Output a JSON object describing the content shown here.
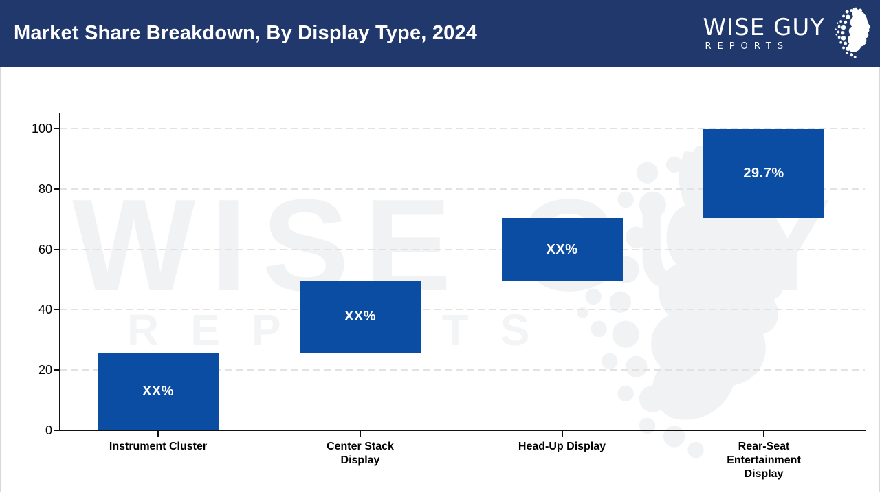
{
  "header": {
    "title": "Market Share Breakdown, By Display Type, 2024",
    "bg_color": "#20386b",
    "brand": {
      "line1": "WISE GUY",
      "line2": "REPORTS"
    }
  },
  "watermark": {
    "line1": "WISE GUY",
    "line2": "REPORTS"
  },
  "chart_data": {
    "type": "bar",
    "variant": "waterfall",
    "title": "Market Share Breakdown, By Display Type, 2024",
    "categories": [
      "Instrument Cluster",
      "Center Stack Display",
      "Head-Up Display",
      "Rear-Seat Entertainment Display"
    ],
    "segments": [
      {
        "category": "Instrument Cluster",
        "start": 0,
        "end": 25.7,
        "label": "XX%"
      },
      {
        "category": "Center Stack Display",
        "start": 25.7,
        "end": 49.5,
        "label": "XX%"
      },
      {
        "category": "Head-Up Display",
        "start": 49.5,
        "end": 70.3,
        "label": "XX%"
      },
      {
        "category": "Rear-Seat Entertainment Display",
        "start": 70.3,
        "end": 100,
        "label": "29.7%"
      }
    ],
    "y_ticks": [
      0,
      20,
      40,
      60,
      80,
      100
    ],
    "ylim": [
      0,
      100
    ],
    "xlabel": "",
    "ylabel": "",
    "legend": "none",
    "grid": "dashed-horizontal",
    "bar_color": "#0b4da2"
  }
}
